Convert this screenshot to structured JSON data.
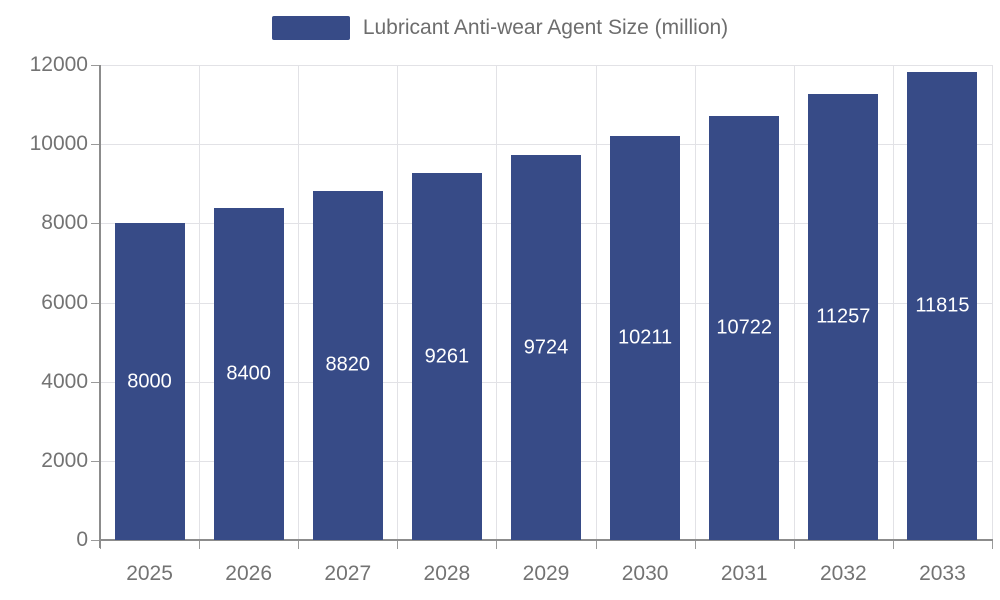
{
  "chart_data": {
    "type": "bar",
    "title": "",
    "legend": "Lubricant Anti-wear Agent Size (million)",
    "legend_position": "top",
    "categories": [
      "2025",
      "2026",
      "2027",
      "2028",
      "2029",
      "2030",
      "2031",
      "2032",
      "2033"
    ],
    "series": [
      {
        "name": "Lubricant Anti-wear Agent Size (million)",
        "values": [
          8000,
          8400,
          8820,
          9261,
          9724,
          10211,
          10722,
          11257,
          11815
        ]
      }
    ],
    "xlabel": "",
    "ylabel": "",
    "ylim": [
      0,
      12000
    ],
    "yticks": [
      0,
      2000,
      4000,
      6000,
      8000,
      10000,
      12000
    ],
    "grid": "on",
    "bar_labels": "inside-center",
    "colors": {
      "bar": "#374b87",
      "bar_label_text": "#ffffff",
      "axis_line": "#8c8c8c",
      "grid_line": "#e2e2e6",
      "tick_label_text": "#737373",
      "legend_text": "#6d6d6d",
      "background": "#ffffff"
    }
  }
}
